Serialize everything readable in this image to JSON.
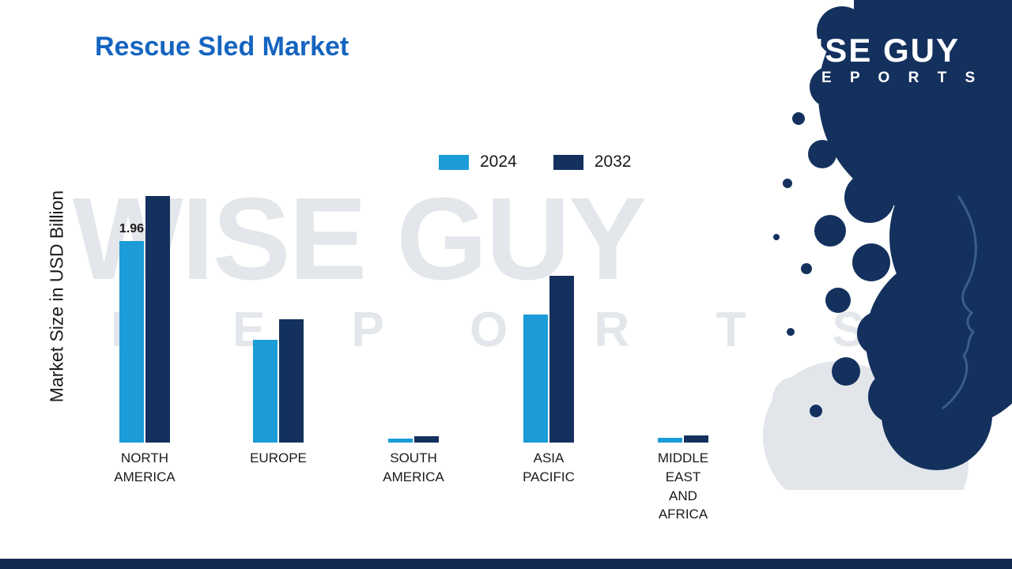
{
  "header": {
    "title": "Rescue Sled Market"
  },
  "logo": {
    "line1": "WISE GUY",
    "line2": "R E P O R T S"
  },
  "watermark": {
    "line1": "WISE GUY",
    "line2": "R E P O R T S"
  },
  "colors": {
    "title": "#1565c0",
    "bar_2024": "#1b9bd7",
    "bar_2032": "#14315e",
    "navy": "#122a52",
    "watermark": "#e3e6ea",
    "text": "#1a1a1a"
  },
  "chart_data": {
    "type": "bar",
    "title": "Rescue Sled Market",
    "xlabel": "",
    "ylabel": "Market Size in USD Billion",
    "ylim": [
      0,
      2.6
    ],
    "grid": false,
    "legend_position": "top",
    "categories": [
      [
        "NORTH",
        "AMERICA"
      ],
      [
        "EUROPE"
      ],
      [
        "SOUTH",
        "AMERICA"
      ],
      [
        "ASIA",
        "PACIFIC"
      ],
      [
        "MIDDLE",
        "EAST",
        "AND",
        "AFRICA"
      ]
    ],
    "series": [
      {
        "name": "2024",
        "color_key": "bar_2024",
        "values": [
          1.96,
          1.0,
          0.04,
          1.25,
          0.05
        ],
        "value_labels": [
          "1.96",
          "",
          "",
          "",
          ""
        ]
      },
      {
        "name": "2032",
        "color_key": "bar_2032",
        "values": [
          2.4,
          1.2,
          0.06,
          1.62,
          0.07
        ],
        "value_labels": [
          "",
          "",
          "",
          "",
          ""
        ]
      }
    ]
  }
}
